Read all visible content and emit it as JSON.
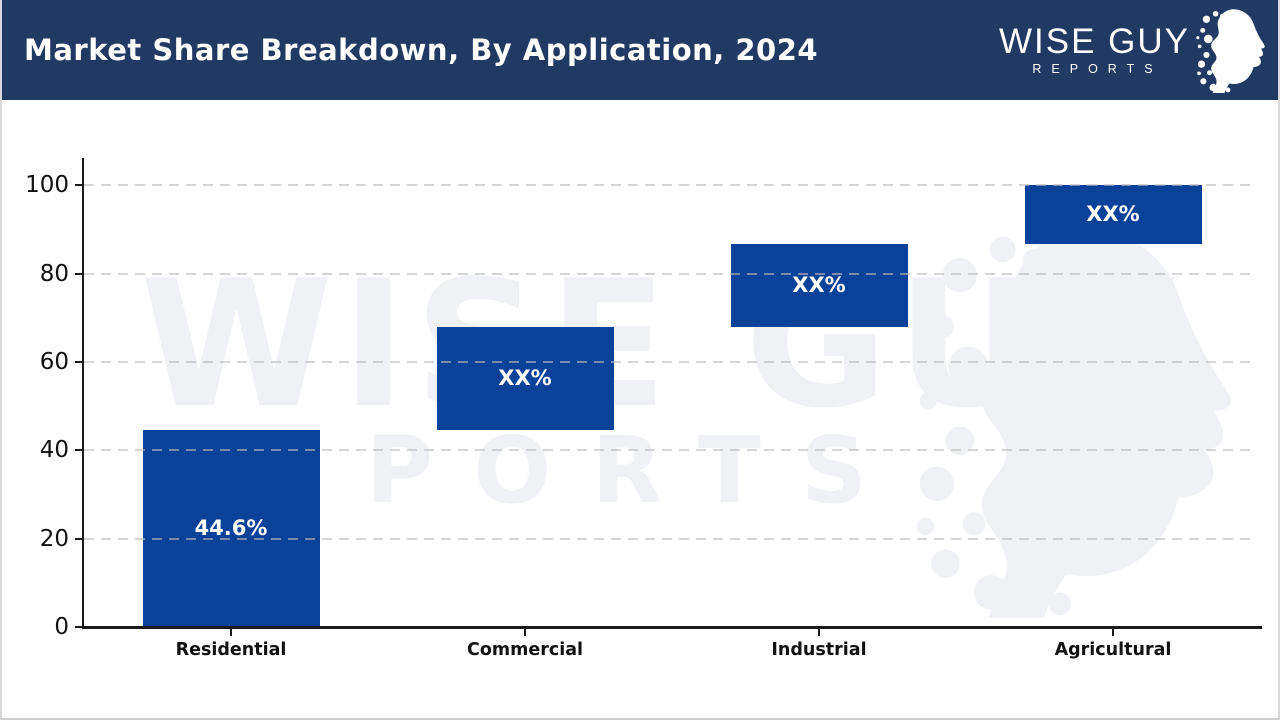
{
  "header": {
    "logo": {
      "line1": "WISE GUY",
      "line2": "REPORTS"
    }
  },
  "watermark": {
    "line1": "WISE GUY",
    "line2": "REPORTS"
  },
  "chart_data": {
    "type": "bar",
    "subtype": "waterfall-floating-segments",
    "title": "Market Share Breakdown, By Application, 2024",
    "categories": [
      "Residential",
      "Commercial",
      "Industrial",
      "Agricultural"
    ],
    "segments": [
      {
        "category": "Residential",
        "start": 0,
        "end": 44.6,
        "label": "44.6%"
      },
      {
        "category": "Commercial",
        "start": 44.6,
        "end": 68.0,
        "label": "XX%"
      },
      {
        "category": "Industrial",
        "start": 68.0,
        "end": 86.8,
        "label": "XX%"
      },
      {
        "category": "Agricultural",
        "start": 86.8,
        "end": 100,
        "label": "XX%"
      }
    ],
    "ylim": [
      0,
      100
    ],
    "yticks": [
      0,
      20,
      40,
      60,
      80,
      100
    ],
    "grid": "horizontal-dashed",
    "legend": "none",
    "bar_color": "#0b4299",
    "bar_label_color": "#ffffff"
  },
  "colors": {
    "header_bg": "#213a64",
    "axis": "#1a1a1a",
    "grid": "#d9d9d9",
    "watermark": "#f0f1f5"
  }
}
